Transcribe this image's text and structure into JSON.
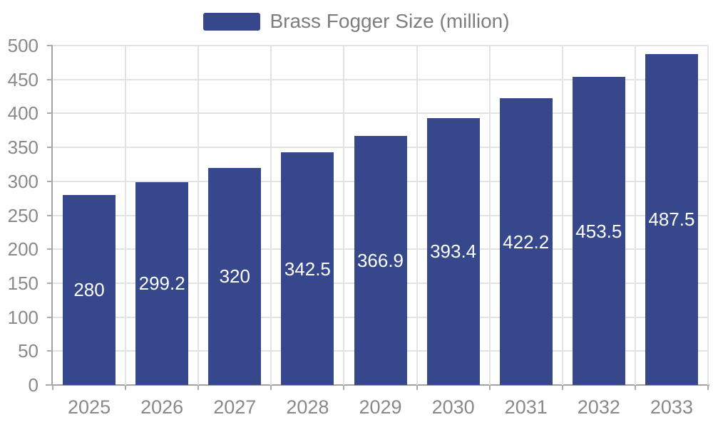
{
  "legend": {
    "label": "Brass Fogger Size (million)"
  },
  "colors": {
    "bar": "#36488b",
    "axis_line": "#a3a3a3",
    "grid_line": "#e3e3e3",
    "axis_label": "#898989",
    "legend_text": "#7d7d7d",
    "value_label": "#ffffff",
    "background": "#ffffff"
  },
  "chart_data": {
    "type": "bar",
    "title": "Brass Fogger Size (million)",
    "categories": [
      "2025",
      "2026",
      "2027",
      "2028",
      "2029",
      "2030",
      "2031",
      "2032",
      "2033"
    ],
    "series": [
      {
        "name": "Brass Fogger Size (million)",
        "values": [
          280,
          299.2,
          320,
          342.5,
          366.9,
          393.4,
          422.2,
          453.5,
          487.5
        ]
      }
    ],
    "xlabel": "",
    "ylabel": "",
    "ylim": [
      0,
      500
    ],
    "y_ticks": [
      0,
      50,
      100,
      150,
      200,
      250,
      300,
      350,
      400,
      450,
      500
    ],
    "grid": true,
    "legend_position": "top-center",
    "value_label_position": "inside-center"
  }
}
